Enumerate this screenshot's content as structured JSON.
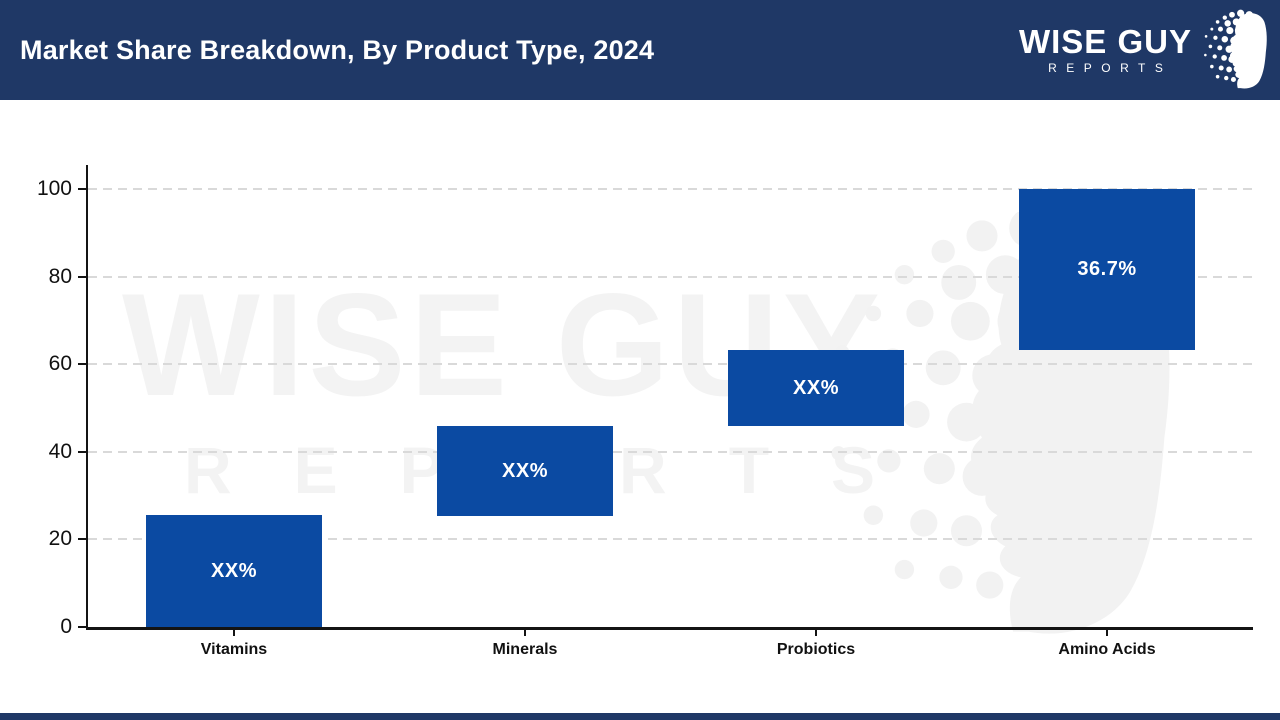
{
  "header": {
    "title": "Market Share Breakdown, By Product Type, 2024"
  },
  "logo": {
    "line1": "WISE GUY",
    "line2": "REPORTS"
  },
  "watermark": {
    "line1": "WISE GUY",
    "line2": "REPORTS"
  },
  "colors": {
    "header_bg": "#1f3866",
    "bar": "#0b4aa2",
    "grid": "#d9d9d9",
    "axis": "#141414",
    "bar_label": "#ffffff",
    "watermark": "#f2f2f2"
  },
  "chart_data": {
    "type": "bar",
    "subtype": "waterfall-floating-bars",
    "title": "Market Share Breakdown, By Product Type, 2024",
    "categories": [
      "Vitamins",
      "Minerals",
      "Probiotics",
      "Amino Acids"
    ],
    "segments": [
      {
        "category": "Vitamins",
        "start": 0,
        "end": 25.5,
        "label": "XX%"
      },
      {
        "category": "Minerals",
        "start": 25.5,
        "end": 46.0,
        "label": "XX%"
      },
      {
        "category": "Probiotics",
        "start": 46.0,
        "end": 63.3,
        "label": "XX%"
      },
      {
        "category": "Amino Acids",
        "start": 63.3,
        "end": 100,
        "label": "36.7%"
      }
    ],
    "yticks": [
      0,
      20,
      40,
      60,
      80,
      100
    ],
    "ylim": [
      0,
      105
    ],
    "xlabel": "",
    "ylabel": "",
    "grid": "horizontal-dashed",
    "legend": "none",
    "bar_color": "#0b4aa2"
  }
}
